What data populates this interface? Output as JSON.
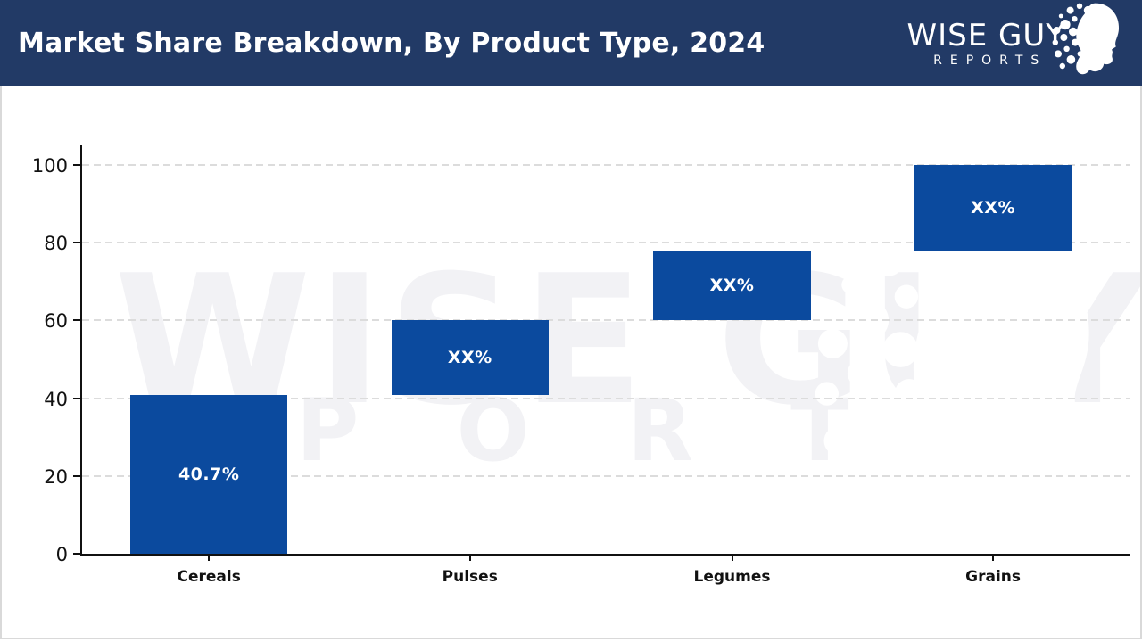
{
  "header": {
    "title": "Market Share Breakdown, By Product Type, 2024",
    "bg_color": "#223a66",
    "logo": {
      "line1": "WISE GUY",
      "line2": "REPORTS"
    }
  },
  "watermark": {
    "line1": "WISE GUY",
    "line2": "P O R T S"
  },
  "chart_data": {
    "type": "bar",
    "subtype": "waterfall",
    "title": "Market Share Breakdown, By Product Type, 2024",
    "categories": [
      "Cereals",
      "Pulses",
      "Legumes",
      "Grains"
    ],
    "segments": [
      {
        "category": "Cereals",
        "start": 0,
        "end": 40.7,
        "label": "40.7%"
      },
      {
        "category": "Pulses",
        "start": 40.7,
        "end": 60,
        "label": "XX%"
      },
      {
        "category": "Legumes",
        "start": 60,
        "end": 78,
        "label": "XX%"
      },
      {
        "category": "Grains",
        "start": 78,
        "end": 100,
        "label": "XX%"
      }
    ],
    "yticks": [
      0,
      20,
      40,
      60,
      80,
      100
    ],
    "ylim": [
      0,
      105
    ],
    "xlabel": "",
    "ylabel": "",
    "grid": "horizontal-dashed",
    "legend": "none",
    "bar_color": "#0b4a9e",
    "grid_color": "#dcdcdc",
    "axis_color": "#111111",
    "layout": {
      "x_centers_pct": [
        12.1,
        37.0,
        62.0,
        86.9
      ],
      "bar_width_pct": 15
    }
  }
}
